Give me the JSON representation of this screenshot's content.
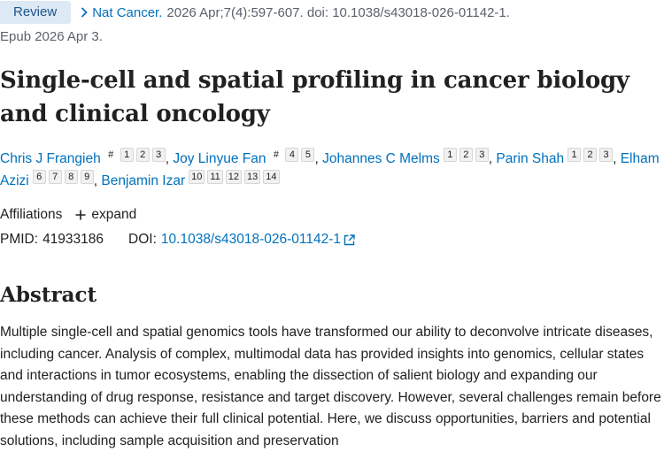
{
  "article": {
    "type_badge": "Review",
    "journal": "Nat Cancer.",
    "citation": "2026 Apr;7(4):597-607. doi: 10.1038/s43018-026-01142-1.",
    "epub": "Epub 2026 Apr 3.",
    "title": "Single-cell and spatial profiling in cancer biology and clinical oncology"
  },
  "authors": [
    {
      "name": "Chris J Frangieh",
      "sups": [
        "#",
        "1",
        "2",
        "3"
      ],
      "sep": ","
    },
    {
      "name": "Joy Linyue Fan",
      "sups": [
        "#",
        "4",
        "5"
      ],
      "sep": ","
    },
    {
      "name": "Johannes C Melms",
      "sups": [
        "1",
        "2",
        "3"
      ],
      "sep": ","
    },
    {
      "name": "Parin Shah",
      "sups": [
        "1",
        "2",
        "3"
      ],
      "sep": ","
    },
    {
      "name": "Elham Azizi",
      "sups": [
        "6",
        "7",
        "8",
        "9"
      ],
      "sep": ","
    },
    {
      "name": "Benjamin Izar",
      "sups": [
        "10",
        "11",
        "12",
        "13",
        "14"
      ],
      "sep": ""
    }
  ],
  "affiliations": {
    "label": "Affiliations",
    "expand": "expand"
  },
  "ids": {
    "pmid_label": "PMID:",
    "pmid": "41933186",
    "doi_label": "DOI:",
    "doi": "10.1038/s43018-026-01142-1"
  },
  "abstract": {
    "heading": "Abstract",
    "text": "Multiple single-cell and spatial genomics tools have transformed our ability to deconvolve intricate diseases, including cancer. Analysis of complex, multimodal data has provided insights into genomics, cellular states and interactions in tumor ecosystems, enabling the dissection of salient biology and expanding our understanding of drug response, resistance and target discovery. However, several challenges remain before these methods can achieve their full clinical potential. Here, we discuss opportunities, barriers and potential solutions, including sample acquisition and preservation"
  },
  "icons": {
    "journal_chevron": "chevron-right-icon",
    "expand": "plus-icon",
    "doi_external": "external-link-icon"
  }
}
